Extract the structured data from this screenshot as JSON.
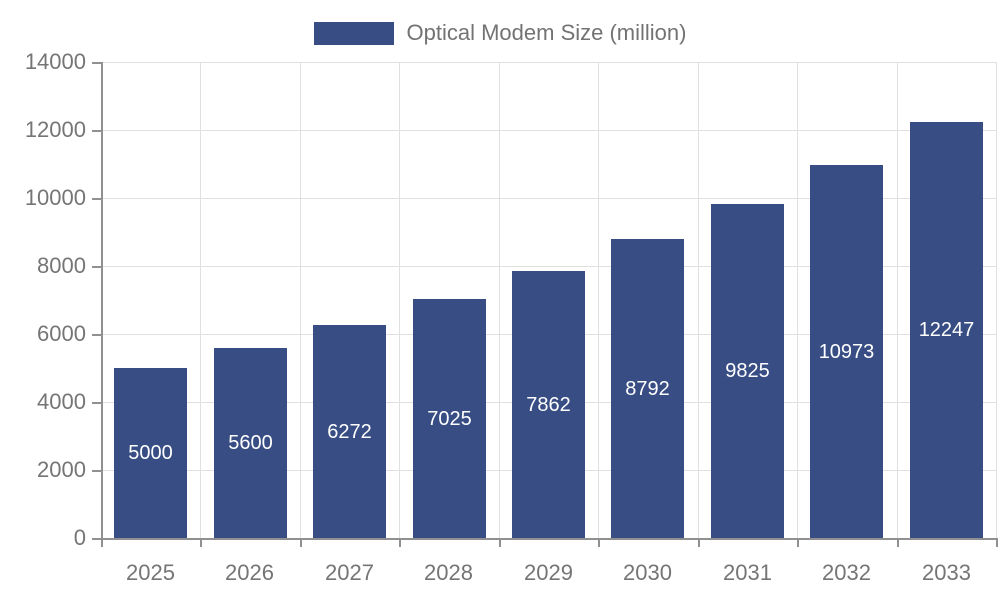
{
  "legend": {
    "label": "Optical Modem Size (million)"
  },
  "chart_data": {
    "type": "bar",
    "title": "Optical Modem Size (million)",
    "series_name": "Optical Modem Size (million)",
    "categories": [
      "2025",
      "2026",
      "2027",
      "2028",
      "2029",
      "2030",
      "2031",
      "2032",
      "2033"
    ],
    "values": [
      5000,
      5600,
      6272,
      7025,
      7862,
      8792,
      9825,
      10973,
      12247
    ],
    "xlabel": "",
    "ylabel": "",
    "ylim": [
      0,
      14000
    ],
    "ytick_interval": 2000,
    "yticks": [
      0,
      2000,
      4000,
      6000,
      8000,
      10000,
      12000,
      14000
    ],
    "grid": true,
    "legend_position": "top-center",
    "value_labels": "inside-center",
    "bar_color": "#374D84",
    "value_label_color": "#ffffff",
    "axis_label_color": "#757575",
    "legend_text_color": "#737373",
    "gridline_color": "#e0e0e0",
    "axis_line_color": "#909090",
    "background_color": "#ffffff"
  }
}
